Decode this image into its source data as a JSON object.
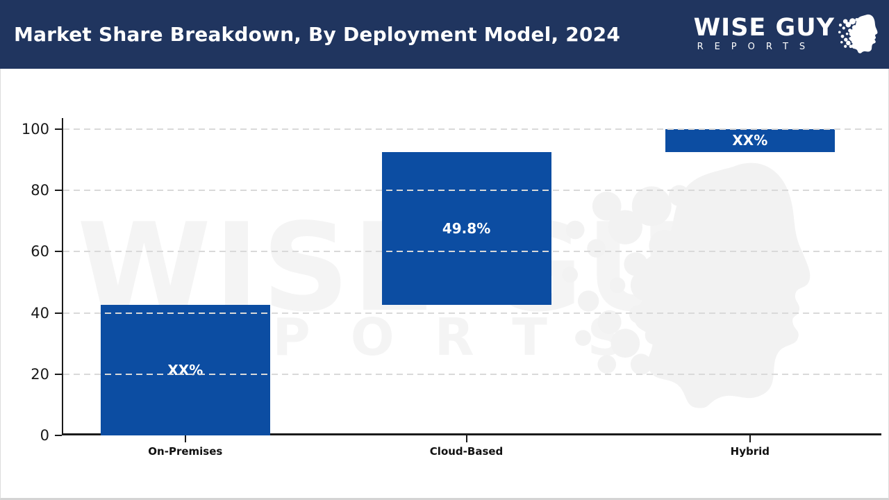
{
  "header": {
    "title": "Market Share Breakdown, By Deployment Model, 2024",
    "logo": {
      "line1": "WISE GUY",
      "line2": "REPORTS"
    }
  },
  "watermark": {
    "line1": "WISE GUY",
    "line2": "REPORTS"
  },
  "chart_data": {
    "type": "bar",
    "subtype": "waterfall-stacked-breakdown",
    "title": "Market Share Breakdown, By Deployment Model, 2024",
    "categories": [
      "On-Premises",
      "Cloud-Based",
      "Hybrid"
    ],
    "segments": [
      {
        "category": "On-Premises",
        "start": 0,
        "end": 42.7,
        "value_label": "XX%"
      },
      {
        "category": "Cloud-Based",
        "start": 42.7,
        "end": 92.5,
        "value_label": "49.8%"
      },
      {
        "category": "Hybrid",
        "start": 92.5,
        "end": 100,
        "value_label": "XX%"
      }
    ],
    "yticks": [
      0,
      20,
      40,
      60,
      80,
      100
    ],
    "ylim": [
      0,
      104
    ],
    "xlabel": "",
    "ylabel": "",
    "grid": "horizontal-dashed",
    "legend": "none"
  },
  "colors": {
    "header_bg": "#20355F",
    "bar": "#0C4DA2",
    "grid": "#D9D9D9",
    "axis": "#1A1A1A",
    "bar_label": "#FFFFFF",
    "watermark": "#F4F4F4"
  }
}
